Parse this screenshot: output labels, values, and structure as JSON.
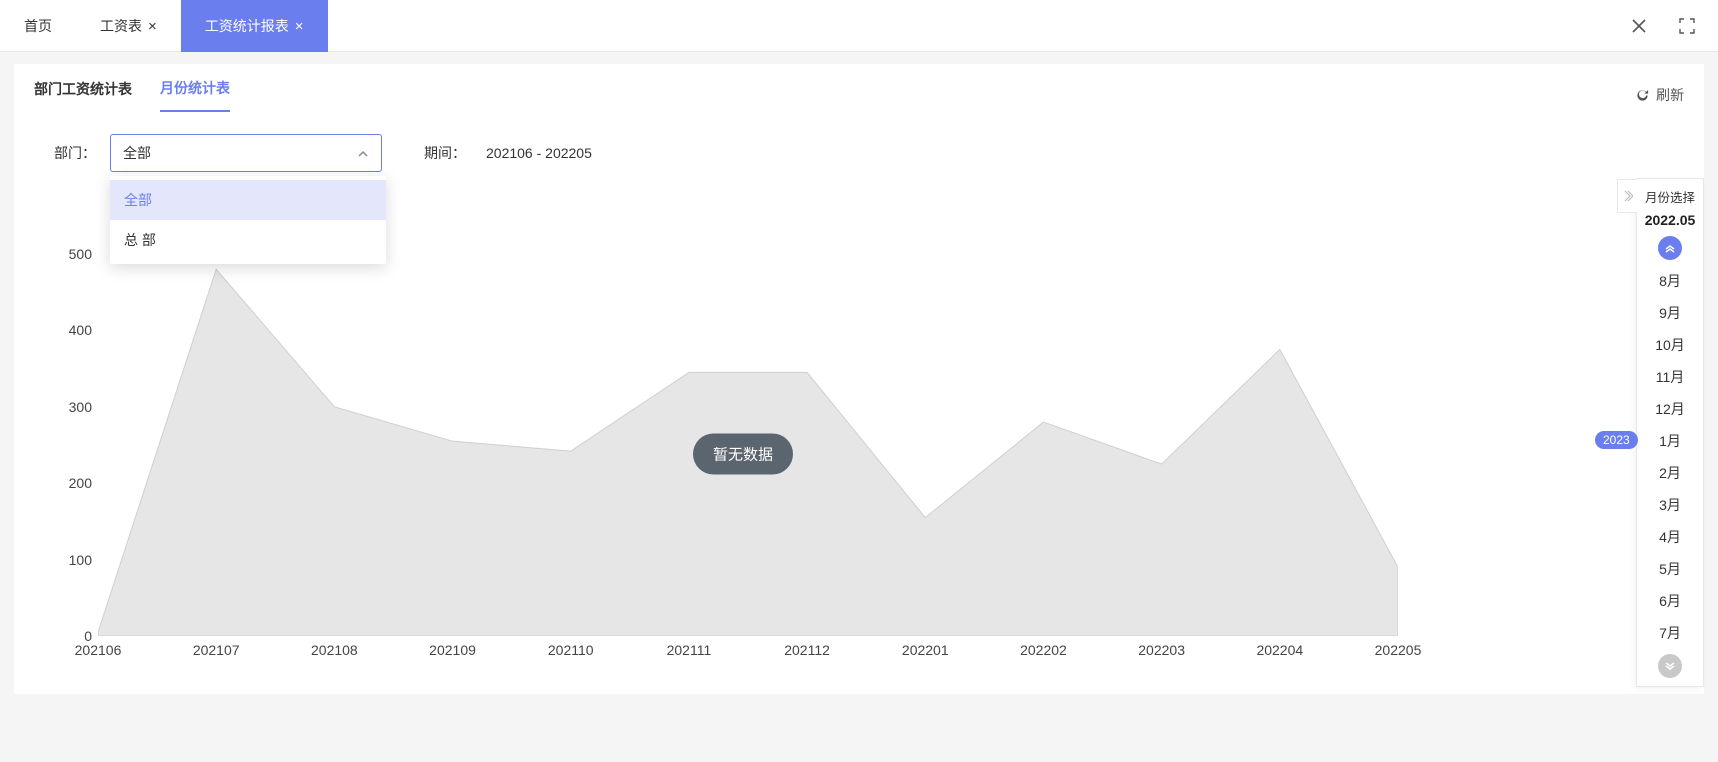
{
  "main_tabs": [
    {
      "label": "首页",
      "closable": false,
      "active": false
    },
    {
      "label": "工资表",
      "closable": true,
      "active": false
    },
    {
      "label": "工资统计报表",
      "closable": true,
      "active": true
    }
  ],
  "sub_tabs": [
    {
      "label": "部门工资统计表",
      "active": false
    },
    {
      "label": "月份统计表",
      "active": true
    }
  ],
  "refresh_label": "刷新",
  "filter": {
    "dept_label": "部门：",
    "dept_selected": "全部",
    "dropdown_open": true,
    "options": [
      "全部",
      "总 部"
    ],
    "period_label": "期间：",
    "period_value": "202106 - 202205"
  },
  "chart": {
    "type": "area",
    "no_data_label": "暂无数据",
    "background_color": "#ffffff",
    "fill_color": "#e6e6e6",
    "stroke_color": "#cfcfcf",
    "axis_color": "#cccccc",
    "y": {
      "min": 0,
      "max": 500,
      "step": 100,
      "ticks": [
        0,
        100,
        200,
        300,
        400,
        500
      ]
    },
    "x_labels": [
      "202106",
      "202107",
      "202108",
      "202109",
      "202110",
      "202111",
      "202112",
      "202201",
      "202202",
      "202203",
      "202204",
      "202205"
    ],
    "values": [
      5,
      480,
      300,
      255,
      242,
      345,
      345,
      155,
      280,
      225,
      375,
      90
    ]
  },
  "month_panel": {
    "title": "月份选择",
    "current": "2022.05",
    "year_badge": "2023",
    "year_badge_index": 5,
    "months": [
      "8月",
      "9月",
      "10月",
      "11月",
      "12月",
      "1月",
      "2月",
      "3月",
      "4月",
      "5月",
      "6月",
      "7月"
    ]
  },
  "colors": {
    "accent": "#6a7eee"
  }
}
